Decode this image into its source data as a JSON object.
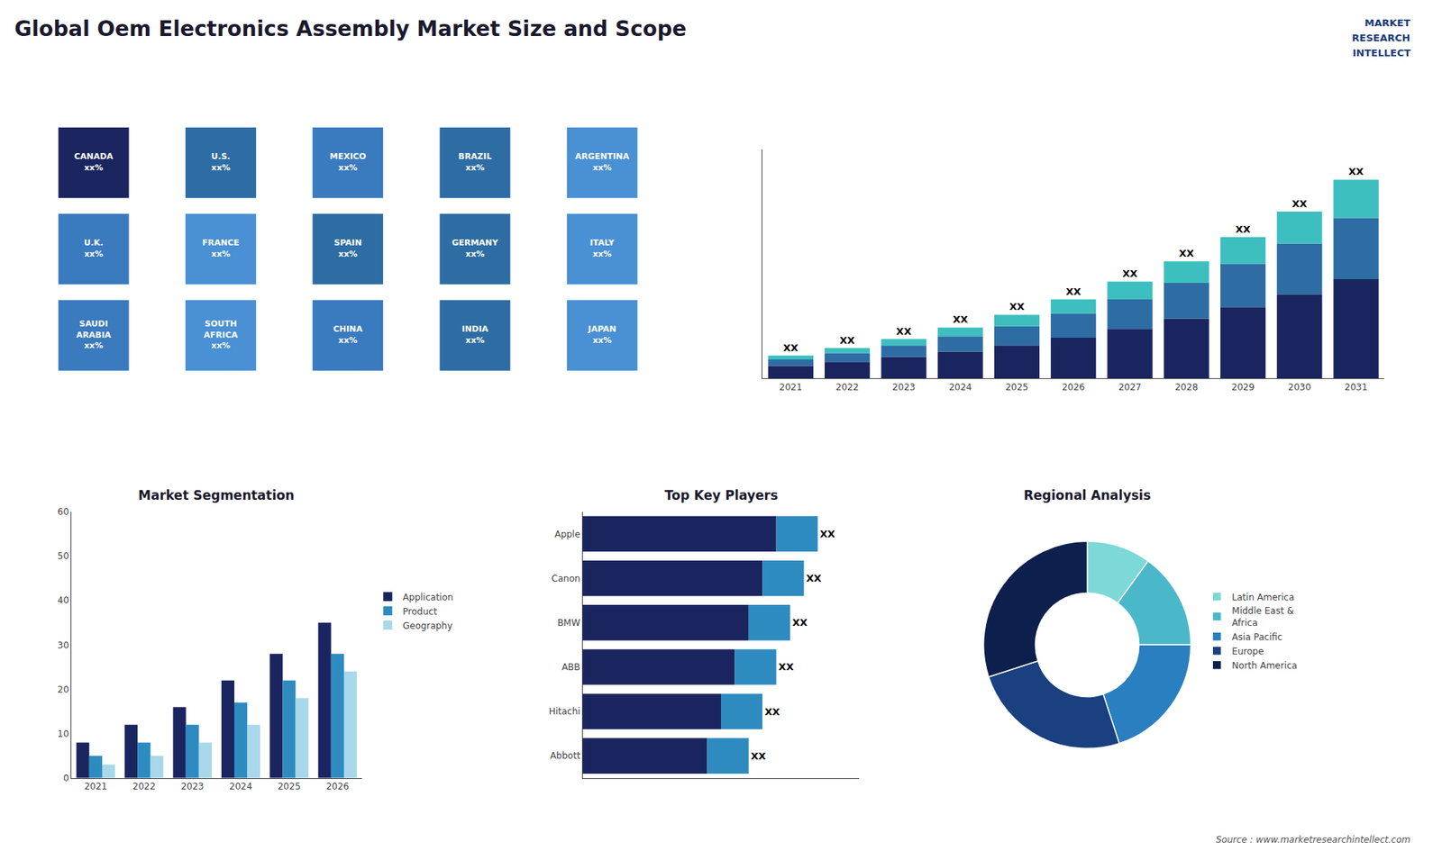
{
  "title": "Global Oem Electronics Assembly Market Size and Scope",
  "annotations": [
    "MARKET",
    "RESEARCH",
    "INTELLECT",
    "Source : www.marketresearchintellect.com"
  ],
  "chart_data": [
    {
      "type": "map",
      "categories": [
        "CANADA\nxx%",
        "U.S.\nxx%",
        "MEXICO\nxx%",
        "BRAZIL\nxx%",
        "ARGENTINA\nxx%",
        "U.K.\nxx%",
        "FRANCE\nxx%",
        "SPAIN\nxx%",
        "GERMANY\nxx%",
        "ITALY\nxx%",
        "SAUDI\nARABIA\nxx%",
        "SOUTH\nAFRICA\nxx%",
        "CHINA\nxx%",
        "INDIA\nxx%",
        "JAPAN\nxx%"
      ],
      "colors": [
        "#1a2560",
        "#2e6da4",
        "#3a7abf",
        "#2e6da4",
        "#4a90d4",
        "#3a7abf",
        "#4a90d4",
        "#2e6da4",
        "#2e6da4",
        "#4a90d4",
        "#3a7abf",
        "#4a90d4",
        "#3a7abf",
        "#2e6da4",
        "#4a90d4"
      ],
      "tick_labels": false
    },
    {
      "type": "bar",
      "stacked": true,
      "categories": [
        "2021",
        "2022",
        "2023",
        "2024",
        "2025",
        "2026",
        "2027",
        "2028",
        "2029",
        "2030",
        "2031"
      ],
      "series": [
        {
          "color": "#1a2560",
          "values": [
            1.0,
            1.3,
            1.7,
            2.1,
            2.6,
            3.2,
            3.9,
            4.7,
            5.6,
            6.6,
            7.8
          ]
        },
        {
          "color": "#2e6da4",
          "values": [
            0.5,
            0.7,
            0.9,
            1.2,
            1.5,
            1.9,
            2.3,
            2.8,
            3.4,
            4.0,
            4.8
          ]
        },
        {
          "color": "#3dbfbf",
          "values": [
            0.3,
            0.4,
            0.5,
            0.7,
            0.9,
            1.1,
            1.4,
            1.7,
            2.1,
            2.5,
            3.0
          ]
        }
      ],
      "annotations": [
        "XX",
        "XX",
        "XX",
        "XX",
        "XX",
        "XX",
        "XX",
        "XX",
        "XX",
        "XX",
        "XX"
      ],
      "ylim": [
        0,
        18
      ],
      "tick_labels": "x",
      "grid": false
    },
    {
      "type": "bar",
      "title": "Market Segmentation",
      "categories": [
        "2021",
        "2022",
        "2023",
        "2024",
        "2025",
        "2026"
      ],
      "series": [
        {
          "name": "Application",
          "color": "#1a2560",
          "values": [
            8,
            12,
            16,
            22,
            28,
            35
          ]
        },
        {
          "name": "Product",
          "color": "#2e8bc0",
          "values": [
            5,
            8,
            12,
            17,
            22,
            28
          ]
        },
        {
          "name": "Geography",
          "color": "#a8d8ea",
          "values": [
            3,
            5,
            8,
            12,
            18,
            24
          ]
        }
      ],
      "ylim": [
        0,
        60
      ],
      "yticks": [
        0,
        10,
        20,
        30,
        40,
        50,
        60
      ],
      "legend": "right",
      "grid": false
    },
    {
      "type": "bar",
      "title": "Top Key Players",
      "orientation": "horizontal",
      "stacked": true,
      "categories": [
        "Apple",
        "Canon",
        "BMW",
        "ABB",
        "Hitachi",
        "Abbott"
      ],
      "series": [
        {
          "color": "#1a2560",
          "values": [
            7.0,
            6.5,
            6.0,
            5.5,
            5.0,
            4.5
          ]
        },
        {
          "color": "#2e8bc0",
          "values": [
            1.5,
            1.5,
            1.5,
            1.5,
            1.5,
            1.5
          ]
        }
      ],
      "annotations": [
        "XX",
        "XX",
        "XX",
        "XX",
        "XX",
        "XX"
      ],
      "xlim": [
        0,
        10
      ],
      "tick_labels": "y",
      "grid": false
    },
    {
      "type": "pie",
      "title": "Regional Analysis",
      "categories": [
        "Latin America",
        "Middle East &\nAfrica",
        "Asia Pacific",
        "Europe",
        "North America"
      ],
      "values": [
        10,
        15,
        20,
        25,
        30
      ],
      "colors": [
        "#7dd8d8",
        "#4ab8c8",
        "#2a7fc0",
        "#1a4080",
        "#0d1f4c"
      ],
      "legend": "right"
    }
  ]
}
